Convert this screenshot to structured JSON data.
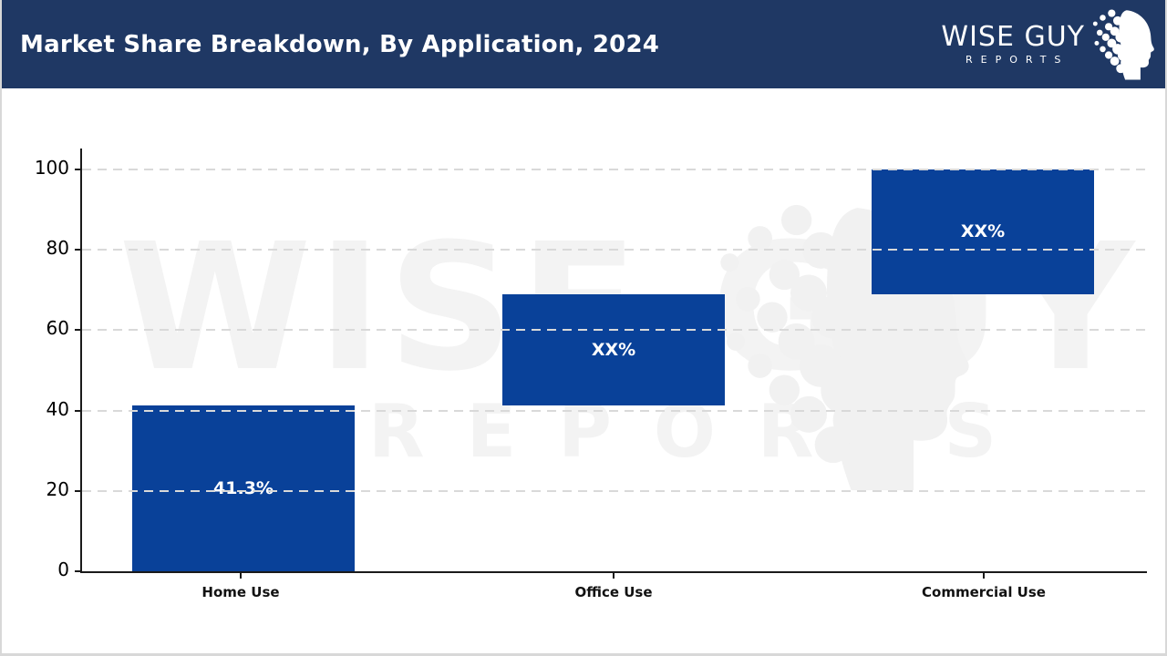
{
  "header": {
    "title": "Market Share Breakdown, By Application, 2024",
    "bg_color": "#1F3864",
    "title_color": "#ffffff",
    "logo": {
      "line1": "WISE GUY",
      "line2": "REPORTS"
    }
  },
  "watermark": {
    "line1": "WISE GUY",
    "line2": "REPORTS"
  },
  "chart_data": {
    "type": "bar",
    "subtype": "floating-segment-waterfall",
    "title": "Market Share Breakdown, By Application, 2024",
    "categories": [
      "Home Use",
      "Office Use",
      "Commercial Use"
    ],
    "series": [
      {
        "name": "Market share (%)",
        "segments": [
          {
            "category": "Home Use",
            "start": 0,
            "end": 41.3,
            "label": "41.3%"
          },
          {
            "category": "Office Use",
            "start": 41.3,
            "end": 69,
            "label": "XX%"
          },
          {
            "category": "Commercial Use",
            "start": 69,
            "end": 100,
            "label": "XX%"
          }
        ]
      }
    ],
    "xlabel": "",
    "ylabel": "",
    "ylim": [
      0,
      100
    ],
    "yticks": [
      0,
      20,
      40,
      60,
      80,
      100
    ],
    "grid": "horizontal-dashed",
    "legend": "none",
    "bar_color": "#094199",
    "bar_label_color": "#ffffff",
    "axis_color": "#1a1a1a",
    "gridline_color": "#d9d9d9"
  }
}
